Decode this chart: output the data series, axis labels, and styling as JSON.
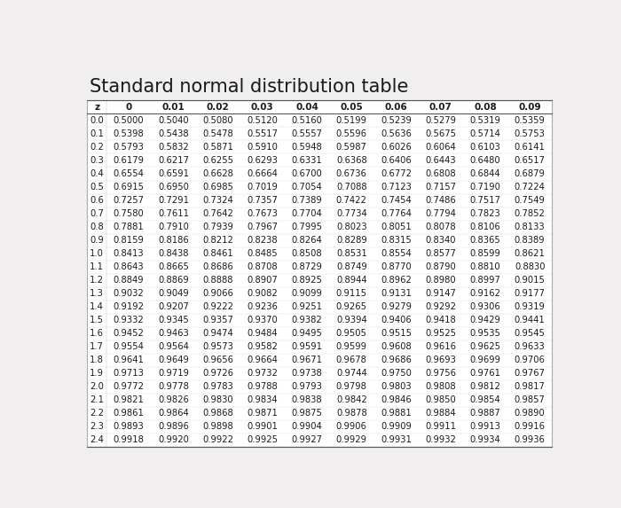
{
  "title": "Standard normal distribution table",
  "columns": [
    "z",
    "0",
    "0.01",
    "0.02",
    "0.03",
    "0.04",
    "0.05",
    "0.06",
    "0.07",
    "0.08",
    "0.09"
  ],
  "rows": [
    [
      "0.0",
      "0.5000",
      "0.5040",
      "0.5080",
      "0.5120",
      "0.5160",
      "0.5199",
      "0.5239",
      "0.5279",
      "0.5319",
      "0.5359"
    ],
    [
      "0.1",
      "0.5398",
      "0.5438",
      "0.5478",
      "0.5517",
      "0.5557",
      "0.5596",
      "0.5636",
      "0.5675",
      "0.5714",
      "0.5753"
    ],
    [
      "0.2",
      "0.5793",
      "0.5832",
      "0.5871",
      "0.5910",
      "0.5948",
      "0.5987",
      "0.6026",
      "0.6064",
      "0.6103",
      "0.6141"
    ],
    [
      "0.3",
      "0.6179",
      "0.6217",
      "0.6255",
      "0.6293",
      "0.6331",
      "0.6368",
      "0.6406",
      "0.6443",
      "0.6480",
      "0.6517"
    ],
    [
      "0.4",
      "0.6554",
      "0.6591",
      "0.6628",
      "0.6664",
      "0.6700",
      "0.6736",
      "0.6772",
      "0.6808",
      "0.6844",
      "0.6879"
    ],
    [
      "0.5",
      "0.6915",
      "0.6950",
      "0.6985",
      "0.7019",
      "0.7054",
      "0.7088",
      "0.7123",
      "0.7157",
      "0.7190",
      "0.7224"
    ],
    [
      "0.6",
      "0.7257",
      "0.7291",
      "0.7324",
      "0.7357",
      "0.7389",
      "0.7422",
      "0.7454",
      "0.7486",
      "0.7517",
      "0.7549"
    ],
    [
      "0.7",
      "0.7580",
      "0.7611",
      "0.7642",
      "0.7673",
      "0.7704",
      "0.7734",
      "0.7764",
      "0.7794",
      "0.7823",
      "0.7852"
    ],
    [
      "0.8",
      "0.7881",
      "0.7910",
      "0.7939",
      "0.7967",
      "0.7995",
      "0.8023",
      "0.8051",
      "0.8078",
      "0.8106",
      "0.8133"
    ],
    [
      "0.9",
      "0.8159",
      "0.8186",
      "0.8212",
      "0.8238",
      "0.8264",
      "0.8289",
      "0.8315",
      "0.8340",
      "0.8365",
      "0.8389"
    ],
    [
      "1.0",
      "0.8413",
      "0.8438",
      "0.8461",
      "0.8485",
      "0.8508",
      "0.8531",
      "0.8554",
      "0.8577",
      "0.8599",
      "0.8621"
    ],
    [
      "1.1",
      "0.8643",
      "0.8665",
      "0.8686",
      "0.8708",
      "0.8729",
      "0.8749",
      "0.8770",
      "0.8790",
      "0.8810",
      "0.8830"
    ],
    [
      "1.2",
      "0.8849",
      "0.8869",
      "0.8888",
      "0.8907",
      "0.8925",
      "0.8944",
      "0.8962",
      "0.8980",
      "0.8997",
      "0.9015"
    ],
    [
      "1.3",
      "0.9032",
      "0.9049",
      "0.9066",
      "0.9082",
      "0.9099",
      "0.9115",
      "0.9131",
      "0.9147",
      "0.9162",
      "0.9177"
    ],
    [
      "1.4",
      "0.9192",
      "0.9207",
      "0.9222",
      "0.9236",
      "0.9251",
      "0.9265",
      "0.9279",
      "0.9292",
      "0.9306",
      "0.9319"
    ],
    [
      "1.5",
      "0.9332",
      "0.9345",
      "0.9357",
      "0.9370",
      "0.9382",
      "0.9394",
      "0.9406",
      "0.9418",
      "0.9429",
      "0.9441"
    ],
    [
      "1.6",
      "0.9452",
      "0.9463",
      "0.9474",
      "0.9484",
      "0.9495",
      "0.9505",
      "0.9515",
      "0.9525",
      "0.9535",
      "0.9545"
    ],
    [
      "1.7",
      "0.9554",
      "0.9564",
      "0.9573",
      "0.9582",
      "0.9591",
      "0.9599",
      "0.9608",
      "0.9616",
      "0.9625",
      "0.9633"
    ],
    [
      "1.8",
      "0.9641",
      "0.9649",
      "0.9656",
      "0.9664",
      "0.9671",
      "0.9678",
      "0.9686",
      "0.9693",
      "0.9699",
      "0.9706"
    ],
    [
      "1.9",
      "0.9713",
      "0.9719",
      "0.9726",
      "0.9732",
      "0.9738",
      "0.9744",
      "0.9750",
      "0.9756",
      "0.9761",
      "0.9767"
    ],
    [
      "2.0",
      "0.9772",
      "0.9778",
      "0.9783",
      "0.9788",
      "0.9793",
      "0.9798",
      "0.9803",
      "0.9808",
      "0.9812",
      "0.9817"
    ],
    [
      "2.1",
      "0.9821",
      "0.9826",
      "0.9830",
      "0.9834",
      "0.9838",
      "0.9842",
      "0.9846",
      "0.9850",
      "0.9854",
      "0.9857"
    ],
    [
      "2.2",
      "0.9861",
      "0.9864",
      "0.9868",
      "0.9871",
      "0.9875",
      "0.9878",
      "0.9881",
      "0.9884",
      "0.9887",
      "0.9890"
    ],
    [
      "2.3",
      "0.9893",
      "0.9896",
      "0.9898",
      "0.9901",
      "0.9904",
      "0.9906",
      "0.9909",
      "0.9911",
      "0.9913",
      "0.9916"
    ],
    [
      "2.4",
      "0.9918",
      "0.9920",
      "0.9922",
      "0.9925",
      "0.9927",
      "0.9929",
      "0.9931",
      "0.9932",
      "0.9934",
      "0.9936"
    ]
  ],
  "outer_bg": "#f0eeee",
  "table_bg": "#ffffff",
  "header_bg": "#ffffff",
  "cell_bg": "#ffffff",
  "border_color": "#aaaaaa",
  "header_line_color": "#555555",
  "title_fontsize": 15,
  "header_fontsize": 7.5,
  "cell_fontsize": 7.2,
  "title_color": "#1a1a1a",
  "text_color": "#1a1a1a"
}
